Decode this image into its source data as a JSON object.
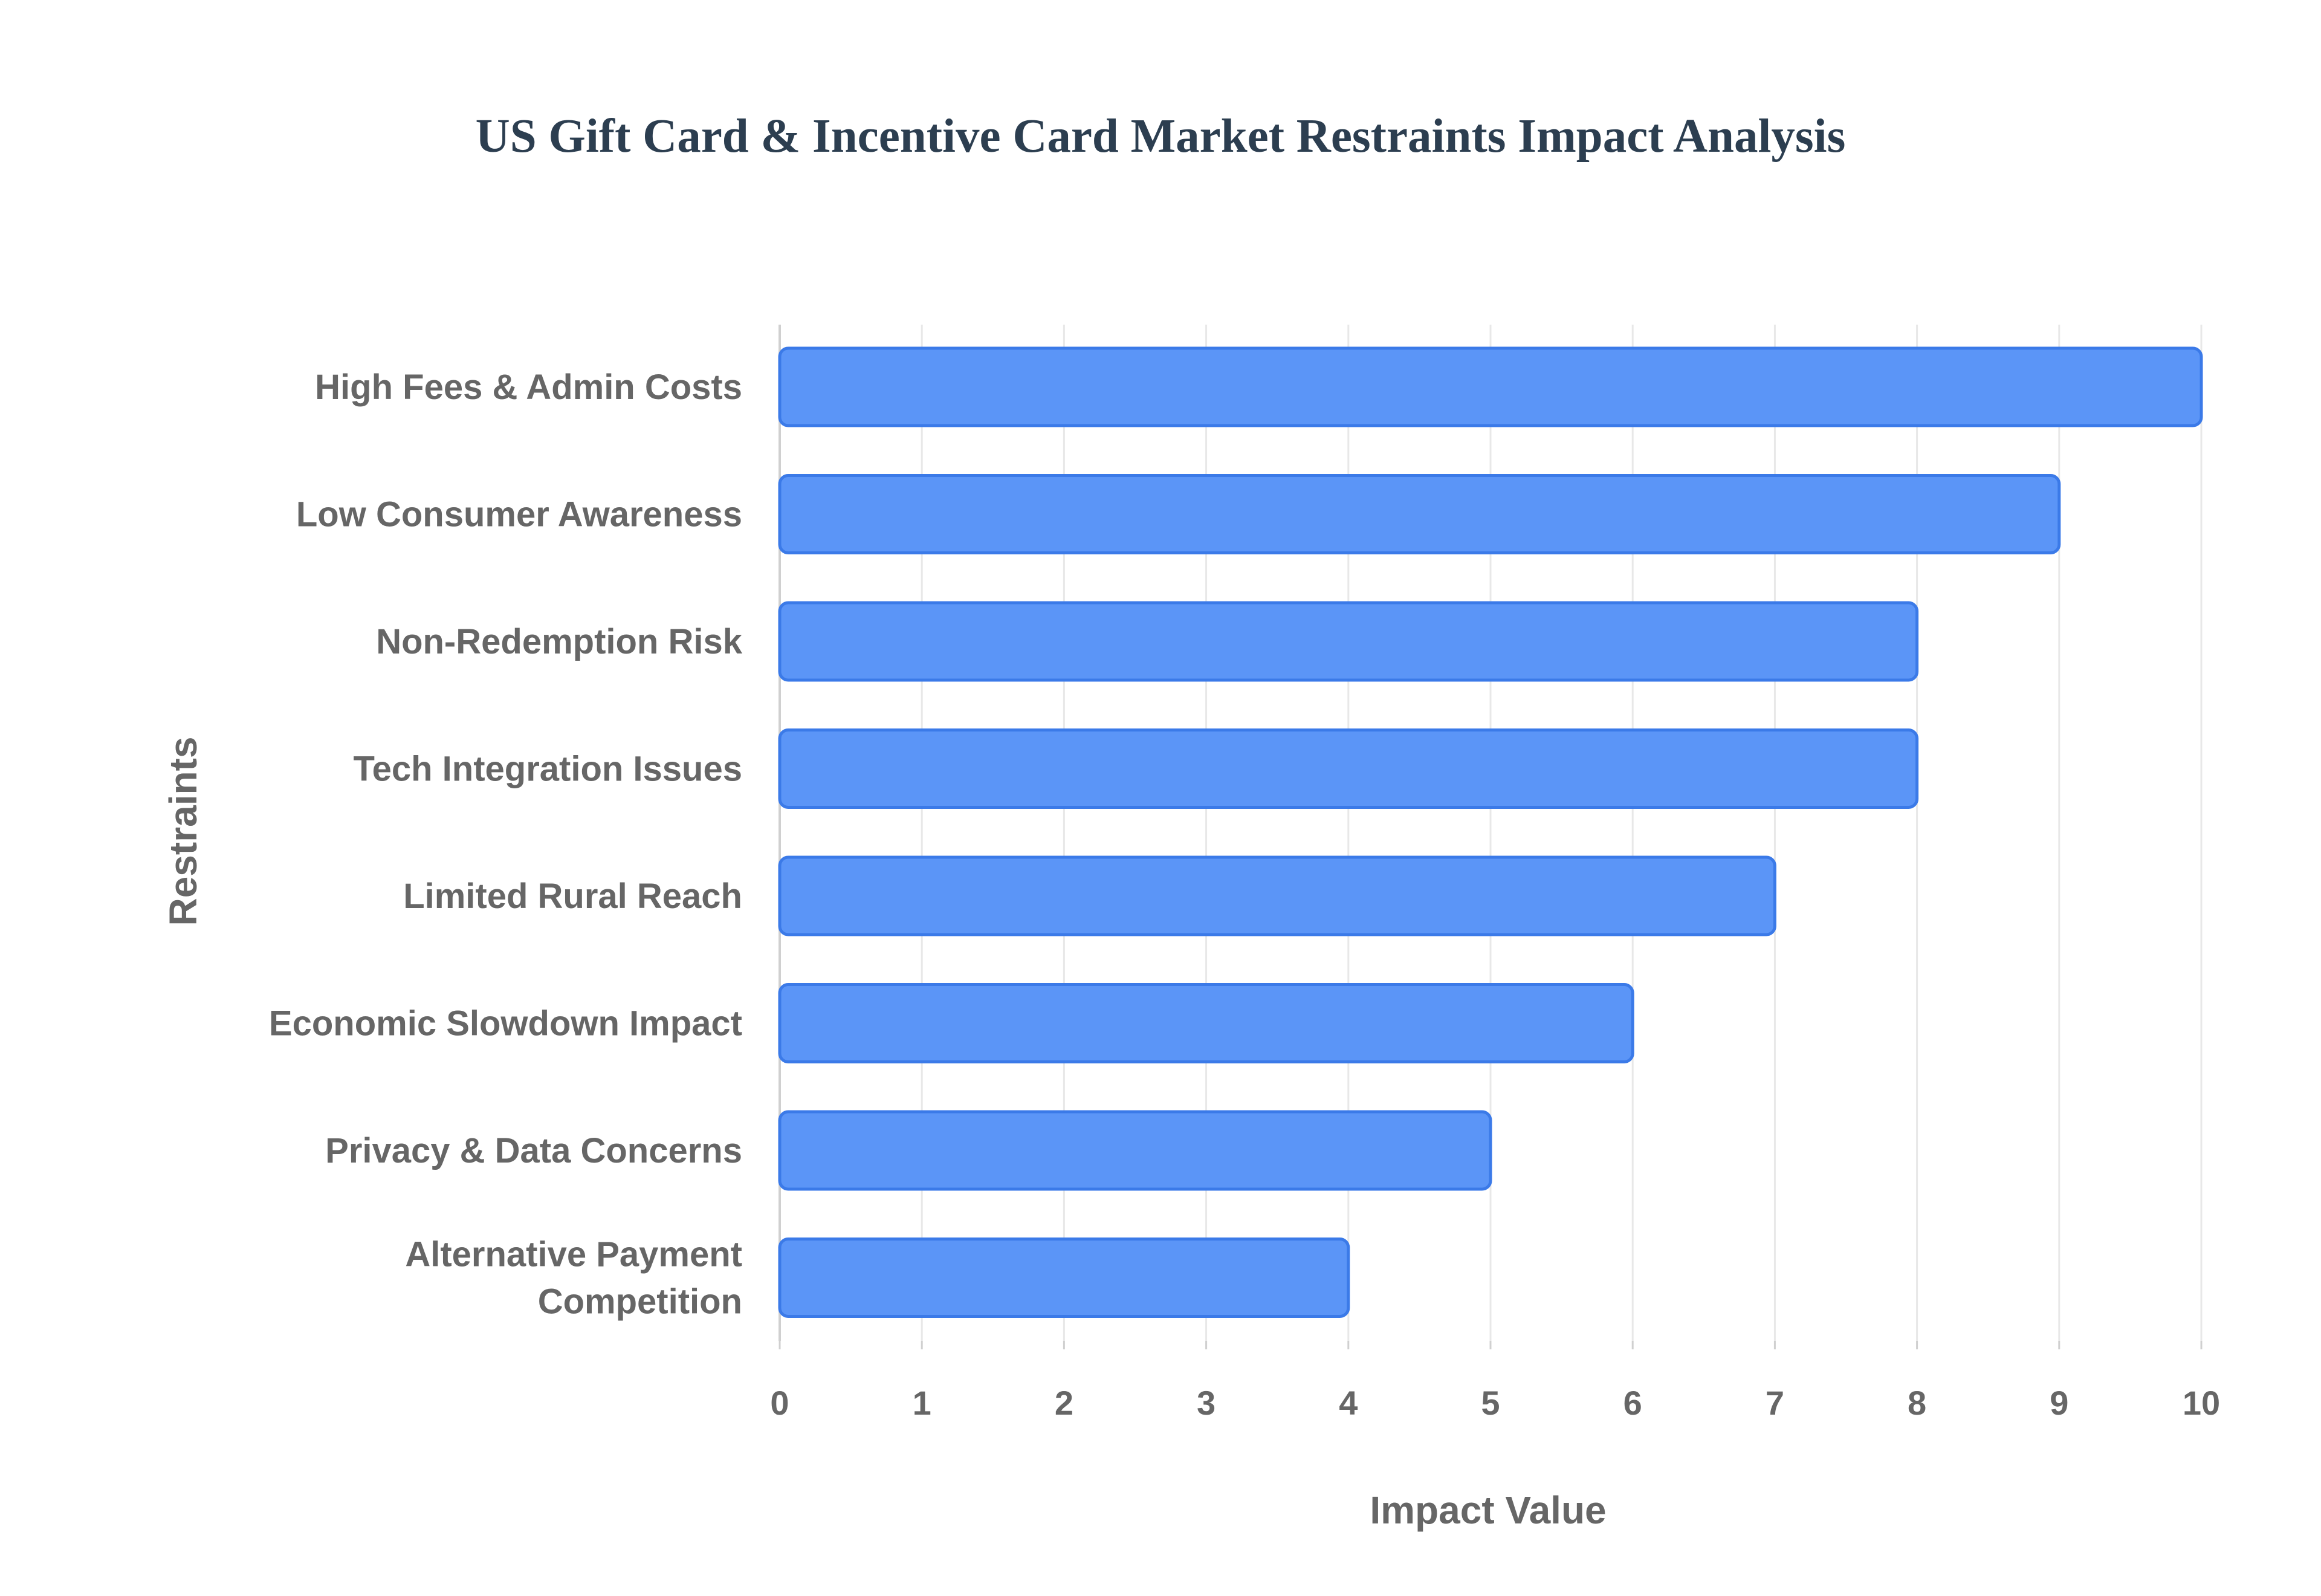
{
  "chart_data": {
    "type": "bar",
    "orientation": "horizontal",
    "title": "US Gift Card & Incentive Card Market Restraints Impact Analysis",
    "xlabel": "Impact Value",
    "ylabel": "Restraints",
    "xlim": [
      0,
      10
    ],
    "x_ticks": [
      "0",
      "1",
      "2",
      "3",
      "4",
      "5",
      "6",
      "7",
      "8",
      "9",
      "10"
    ],
    "grid": true,
    "categories": [
      "High Fees & Admin Costs",
      "Low Consumer Awareness",
      "Non-Redemption Risk",
      "Tech Integration Issues",
      "Limited Rural Reach",
      "Economic Slowdown Impact",
      "Privacy & Data Concerns",
      "Alternative Payment Competition"
    ],
    "values": [
      10,
      9,
      8,
      8,
      7,
      6,
      5,
      4
    ],
    "bar_color": "#5b95f7",
    "bar_edge_color": "#3b7ae8"
  }
}
